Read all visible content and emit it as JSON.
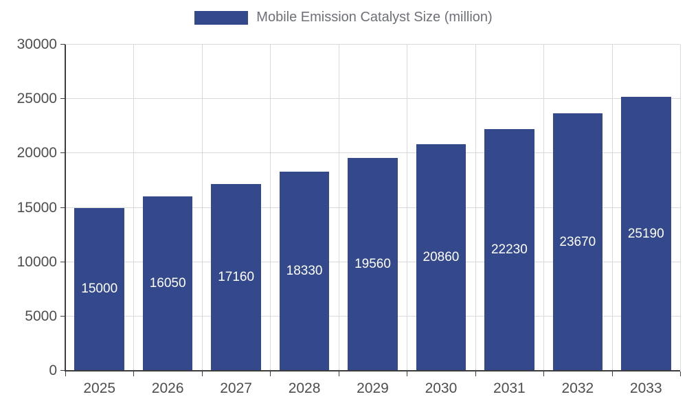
{
  "chart_data": {
    "type": "bar",
    "title": "Mobile Emission Catalyst Size (million)",
    "categories": [
      "2025",
      "2026",
      "2027",
      "2028",
      "2029",
      "2030",
      "2031",
      "2032",
      "2033"
    ],
    "values": [
      15000,
      16050,
      17160,
      18330,
      19560,
      20860,
      22230,
      23670,
      25190
    ],
    "xlabel": "",
    "ylabel": "",
    "ylim": [
      0,
      30000
    ],
    "yticks": [
      0,
      5000,
      10000,
      15000,
      20000,
      25000,
      30000
    ],
    "grid": "on",
    "legend_position": "top",
    "bar_color": "#34498c",
    "bar_label_color": "#ffffff",
    "axis_text_color": "#4e4e4e",
    "grid_color": "#d9d9d9",
    "background_color": "#ffffff"
  }
}
